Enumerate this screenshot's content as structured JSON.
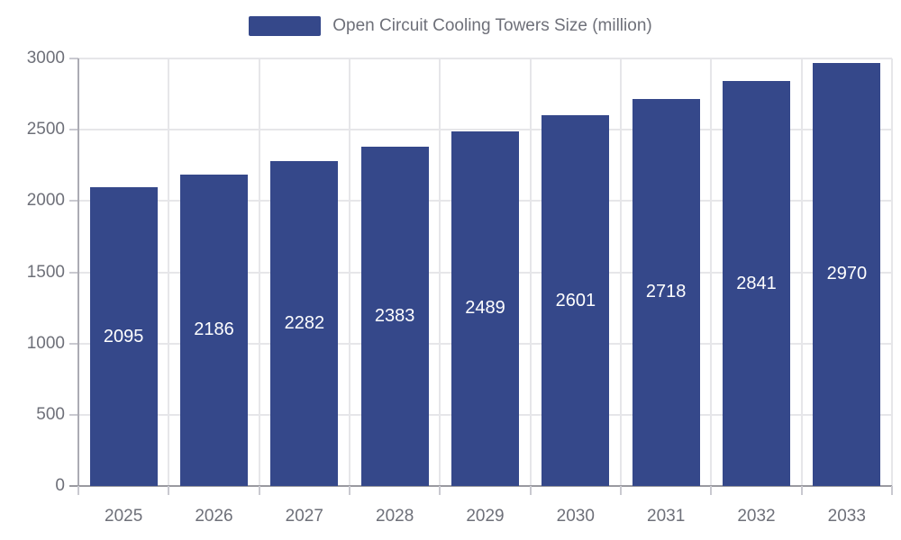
{
  "chart_data": {
    "type": "bar",
    "title": "Open Circuit Cooling Towers Size (million)",
    "categories": [
      "2025",
      "2026",
      "2027",
      "2028",
      "2029",
      "2030",
      "2031",
      "2032",
      "2033"
    ],
    "series": [
      {
        "name": "Open Circuit Cooling Towers Size (million)",
        "values": [
          2095,
          2186,
          2282,
          2383,
          2489,
          2601,
          2718,
          2841,
          2970
        ]
      }
    ],
    "value_labels": [
      "2095",
      "2186",
      "2282",
      "2383",
      "2489",
      "2601",
      "2718",
      "2841",
      "2970"
    ],
    "xlabel": "",
    "ylabel": "",
    "ylim": [
      0,
      3000
    ],
    "yticks": [
      0,
      500,
      1000,
      1500,
      2000,
      2500,
      3000
    ],
    "ytick_labels": [
      "0",
      "500",
      "1000",
      "1500",
      "2000",
      "2500",
      "3000"
    ],
    "grid": true,
    "legend_position": "top-center",
    "value_label_position": "inside-center"
  },
  "colors": {
    "bar": "#35488a",
    "grid_line": "#e6e6e9",
    "axis_line_y": "#ababb3",
    "axis_line_x": "#9a9aa0",
    "tick_mark": "#c9c9d0",
    "tick_label": "#6e7079",
    "legend_text": "#6e7079",
    "value_label": "#ffffff",
    "background": "#ffffff"
  }
}
